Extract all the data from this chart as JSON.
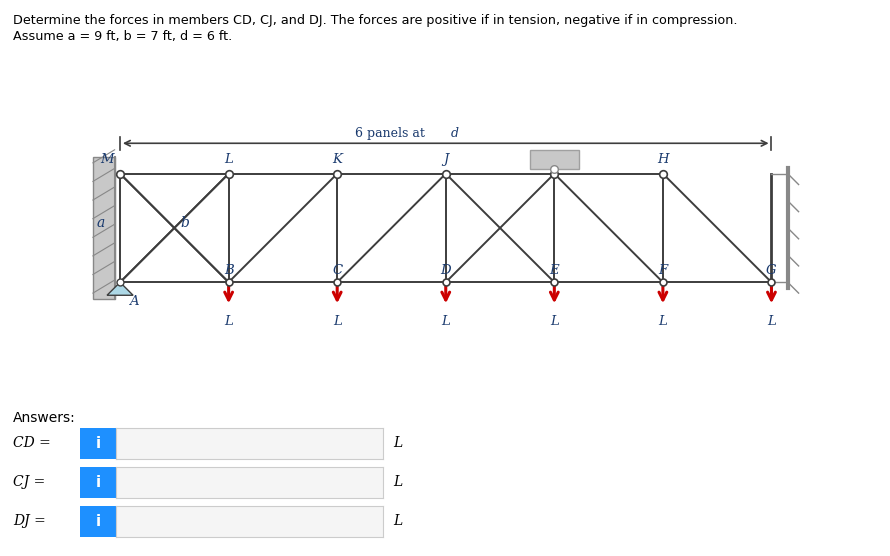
{
  "title_line1": "Determine the forces in members CD, CJ, and DJ. The forces are positive if in tension, negative if in compression.",
  "title_line2": "Assume a = 9 ft, b = 7 ft, d = 6 ft.",
  "panel_label": "6 panels at ",
  "panel_label_d": "d",
  "bg_color": "#ffffff",
  "text_color": "#1a3a6e",
  "truss_color": "#3d3d3d",
  "red_arrow_color": "#cc0000",
  "blue_box_color": "#1e90ff",
  "node_fill": "#e8e8e8",
  "answers_label": "Answers:",
  "answer_rows": [
    {
      "label": "CD =",
      "unit": "L"
    },
    {
      "label": "CJ =",
      "unit": "L"
    },
    {
      "label": "DJ =",
      "unit": "L"
    }
  ]
}
